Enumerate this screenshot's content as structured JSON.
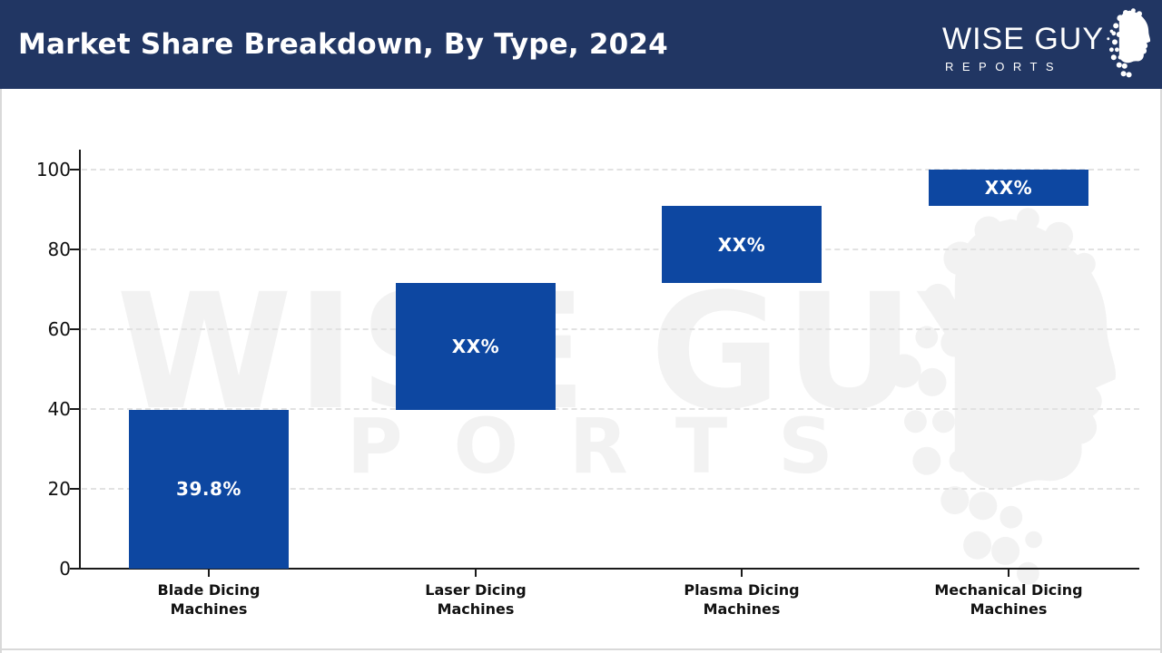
{
  "header": {
    "title": "Market Share Breakdown, By Type, 2024",
    "logo": {
      "line1": "WISE GUY",
      "line2": "REPORTS"
    }
  },
  "watermark": {
    "line1": "WISE GUY",
    "line2": "PORTS"
  },
  "colors": {
    "header_bg": "#213663",
    "bar": "#0d47a1",
    "bar_label": "#ffffff",
    "gridline": "#e2e2e2",
    "watermark": "#f2f2f2",
    "axis": "#1a1a1a"
  },
  "chart_data": {
    "type": "bar",
    "variant": "waterfall",
    "title": "Market Share Breakdown, By Type, 2024",
    "categories": [
      [
        "Blade Dicing",
        "Machines"
      ],
      [
        "Laser Dicing",
        "Machines"
      ],
      [
        "Plasma Dicing",
        "Machines"
      ],
      [
        "Mechanical Dicing",
        "Machines"
      ]
    ],
    "segments": [
      {
        "start": 0,
        "end": 39.8,
        "label": "39.8%"
      },
      {
        "start": 39.8,
        "end": 71.5,
        "label": "XX%"
      },
      {
        "start": 71.5,
        "end": 90.9,
        "label": "XX%"
      },
      {
        "start": 90.9,
        "end": 100,
        "label": "XX%"
      }
    ],
    "yticks": [
      0,
      20,
      40,
      60,
      80,
      100
    ],
    "ylim": [
      0,
      105
    ],
    "xlabel": "",
    "ylabel": "",
    "grid": "horizontal-dashed",
    "legend": false
  }
}
